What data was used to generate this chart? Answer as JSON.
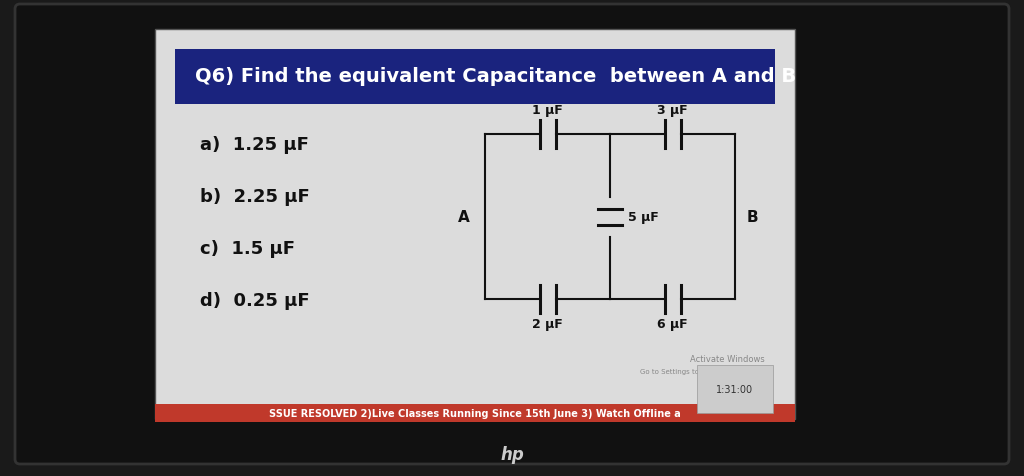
{
  "title": "Q6) Find the equivalent Capacitance  between A and B",
  "title_bg": "#1a237e",
  "title_fg": "#ffffff",
  "slide_bg": "#e8e8e8",
  "outer_bg": "#2a2a2a",
  "options": [
    "a)  1.25 μF",
    "b)  2.25 μF",
    "c)  1.5 μF",
    "d)  0.25 μF"
  ],
  "circuit": {
    "A_label": "A",
    "B_label": "B",
    "cap_top_left_label": "1 μF",
    "cap_top_right_label": "3 μF",
    "cap_mid_label": "5 μF",
    "cap_bot_left_label": "2 μF",
    "cap_bot_right_label": "6 μF"
  },
  "line_color": "#111111",
  "font_size_options": 13,
  "font_size_circuit": 9,
  "font_size_title": 14
}
